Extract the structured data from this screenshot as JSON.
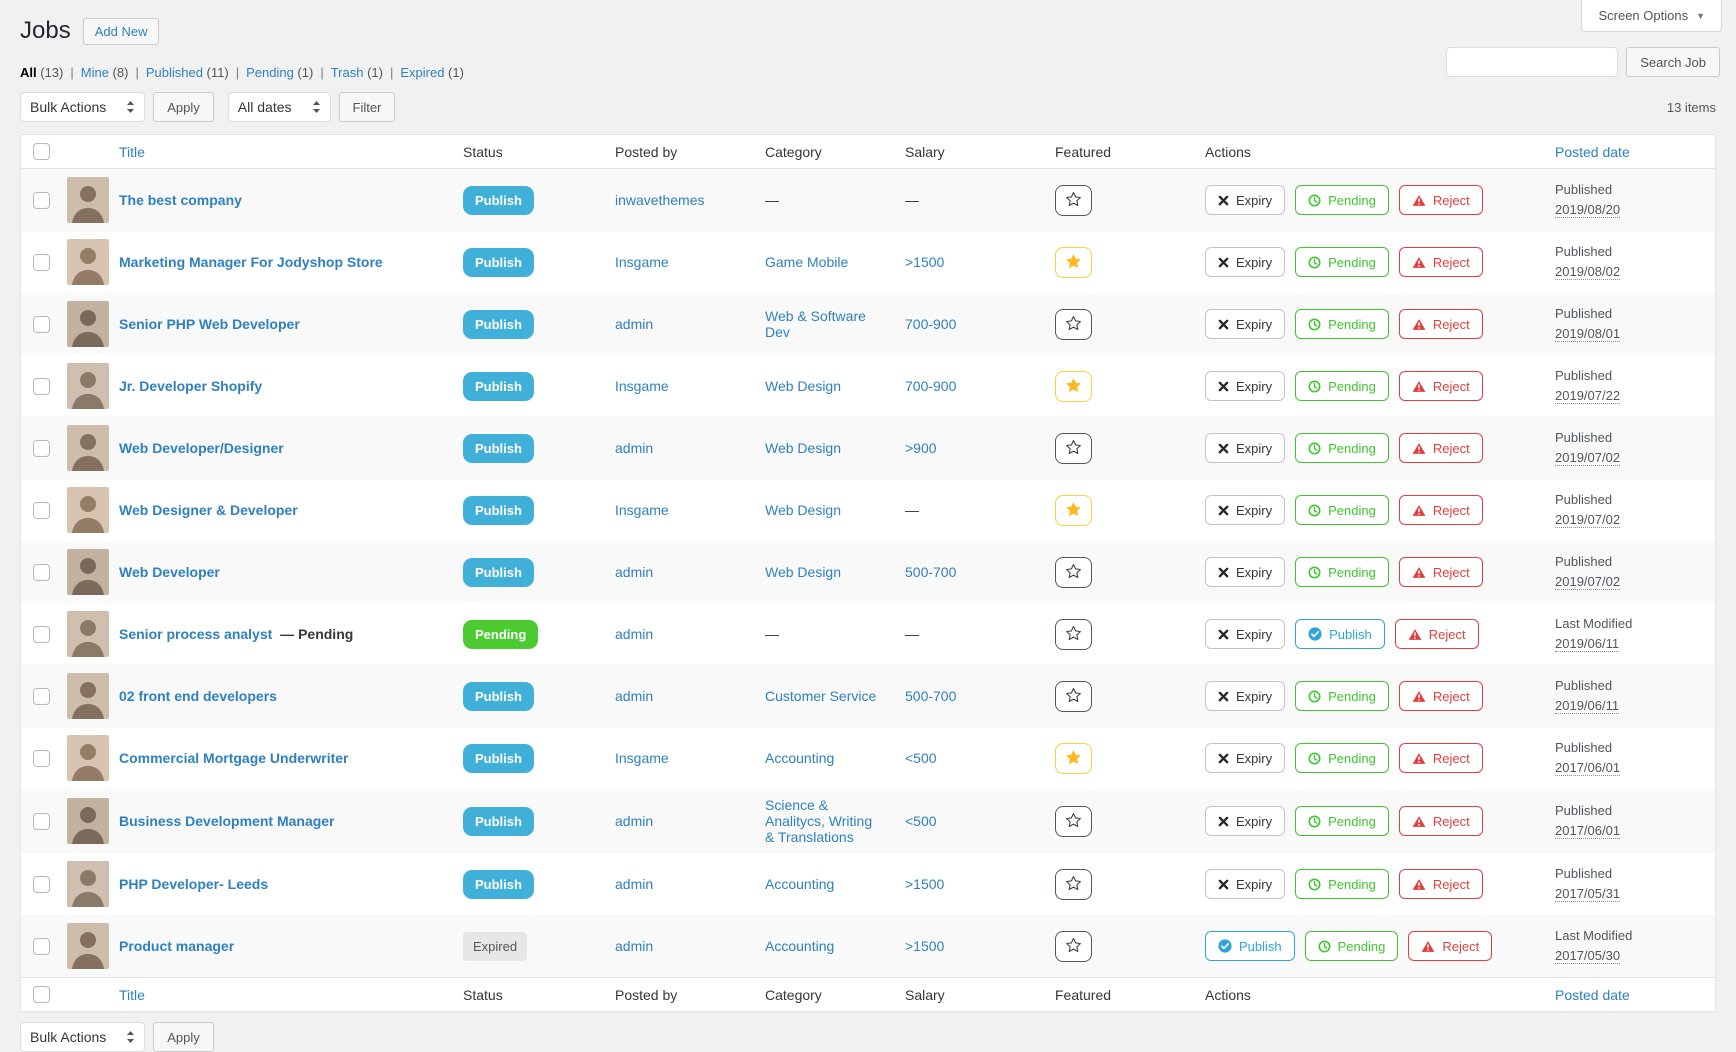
{
  "page": {
    "title": "Jobs",
    "add_new_label": "Add New",
    "screen_options_label": "Screen Options",
    "search_button_label": "Search Job",
    "items_count": "13 items"
  },
  "views": [
    {
      "label": "All",
      "count": "(13)",
      "current": true
    },
    {
      "label": "Mine",
      "count": "(8)",
      "current": false
    },
    {
      "label": "Published",
      "count": "(11)",
      "current": false
    },
    {
      "label": "Pending",
      "count": "(1)",
      "current": false
    },
    {
      "label": "Trash",
      "count": "(1)",
      "current": false
    },
    {
      "label": "Expired",
      "count": "(1)",
      "current": false
    }
  ],
  "toolbar": {
    "bulk_actions_value": "Bulk Actions",
    "apply_label": "Apply",
    "dates_filter_value": "All dates",
    "filter_label": "Filter"
  },
  "table": {
    "columns": [
      {
        "key": "title",
        "label": "Title",
        "sortable": true
      },
      {
        "key": "status",
        "label": "Status",
        "sortable": false
      },
      {
        "key": "posted_by",
        "label": "Posted by",
        "sortable": false
      },
      {
        "key": "category",
        "label": "Category",
        "sortable": false
      },
      {
        "key": "salary",
        "label": "Salary",
        "sortable": false
      },
      {
        "key": "featured",
        "label": "Featured",
        "sortable": false
      },
      {
        "key": "actions",
        "label": "Actions",
        "sortable": false
      },
      {
        "key": "posted_date",
        "label": "Posted date",
        "sortable": true
      }
    ],
    "action_labels": {
      "expiry": "Expiry",
      "pending": "Pending",
      "reject": "Reject",
      "publish": "Publish"
    },
    "rows": [
      {
        "title": "The best company",
        "title_suffix": "",
        "status": "Publish",
        "status_type": "publish",
        "posted_by": "inwavethemes",
        "category": "—",
        "salary": "—",
        "featured": false,
        "actions": [
          "expiry",
          "pending",
          "reject"
        ],
        "date_label": "Published",
        "date_value": "2019/08/20"
      },
      {
        "title": "Marketing Manager For Jodyshop Store",
        "title_suffix": "",
        "status": "Publish",
        "status_type": "publish",
        "posted_by": "Insgame",
        "category": "Game Mobile",
        "salary": ">1500",
        "featured": true,
        "actions": [
          "expiry",
          "pending",
          "reject"
        ],
        "date_label": "Published",
        "date_value": "2019/08/02"
      },
      {
        "title": "Senior PHP Web Developer",
        "title_suffix": "",
        "status": "Publish",
        "status_type": "publish",
        "posted_by": "admin",
        "category": "Web & Software Dev",
        "salary": "700-900",
        "featured": false,
        "actions": [
          "expiry",
          "pending",
          "reject"
        ],
        "date_label": "Published",
        "date_value": "2019/08/01"
      },
      {
        "title": "Jr. Developer Shopify",
        "title_suffix": "",
        "status": "Publish",
        "status_type": "publish",
        "posted_by": "Insgame",
        "category": "Web Design",
        "salary": "700-900",
        "featured": true,
        "actions": [
          "expiry",
          "pending",
          "reject"
        ],
        "date_label": "Published",
        "date_value": "2019/07/22"
      },
      {
        "title": "Web Developer/Designer",
        "title_suffix": "",
        "status": "Publish",
        "status_type": "publish",
        "posted_by": "admin",
        "category": "Web Design",
        "salary": ">900",
        "featured": false,
        "actions": [
          "expiry",
          "pending",
          "reject"
        ],
        "date_label": "Published",
        "date_value": "2019/07/02"
      },
      {
        "title": "Web Designer & Developer",
        "title_suffix": "",
        "status": "Publish",
        "status_type": "publish",
        "posted_by": "Insgame",
        "category": "Web Design",
        "salary": "—",
        "featured": true,
        "actions": [
          "expiry",
          "pending",
          "reject"
        ],
        "date_label": "Published",
        "date_value": "2019/07/02"
      },
      {
        "title": "Web Developer",
        "title_suffix": "",
        "status": "Publish",
        "status_type": "publish",
        "posted_by": "admin",
        "category": "Web Design",
        "salary": "500-700",
        "featured": false,
        "actions": [
          "expiry",
          "pending",
          "reject"
        ],
        "date_label": "Published",
        "date_value": "2019/07/02"
      },
      {
        "title": "Senior process analyst",
        "title_suffix": "— Pending",
        "status": "Pending",
        "status_type": "pending",
        "posted_by": "admin",
        "category": "—",
        "salary": "—",
        "featured": false,
        "actions": [
          "expiry",
          "publish",
          "reject"
        ],
        "date_label": "Last Modified",
        "date_value": "2019/06/11"
      },
      {
        "title": "02 front end developers",
        "title_suffix": "",
        "status": "Publish",
        "status_type": "publish",
        "posted_by": "admin",
        "category": "Customer Service",
        "salary": "500-700",
        "featured": false,
        "actions": [
          "expiry",
          "pending",
          "reject"
        ],
        "date_label": "Published",
        "date_value": "2019/06/11"
      },
      {
        "title": "Commercial Mortgage Underwriter",
        "title_suffix": "",
        "status": "Publish",
        "status_type": "publish",
        "posted_by": "Insgame",
        "category": "Accounting",
        "salary": "<500",
        "featured": true,
        "actions": [
          "expiry",
          "pending",
          "reject"
        ],
        "date_label": "Published",
        "date_value": "2017/06/01"
      },
      {
        "title": "Business Development Manager",
        "title_suffix": "",
        "status": "Publish",
        "status_type": "publish",
        "posted_by": "admin",
        "category": "Science & Analitycs, Writing & Translations",
        "salary": "<500",
        "featured": false,
        "actions": [
          "expiry",
          "pending",
          "reject"
        ],
        "date_label": "Published",
        "date_value": "2017/06/01"
      },
      {
        "title": "PHP Developer- Leeds",
        "title_suffix": "",
        "status": "Publish",
        "status_type": "publish",
        "posted_by": "admin",
        "category": "Accounting",
        "salary": ">1500",
        "featured": false,
        "actions": [
          "expiry",
          "pending",
          "reject"
        ],
        "date_label": "Published",
        "date_value": "2017/05/31"
      },
      {
        "title": "Product manager",
        "title_suffix": "",
        "status": "Expired",
        "status_type": "expired",
        "posted_by": "admin",
        "category": "Accounting",
        "salary": ">1500",
        "featured": false,
        "actions": [
          "publish",
          "pending",
          "reject"
        ],
        "date_label": "Last Modified",
        "date_value": "2017/05/30"
      }
    ]
  },
  "colors": {
    "link": "#2e80be",
    "status_publish": "#41b0d8",
    "status_pending": "#4ccb31",
    "expired_bg": "#e7e7e7",
    "action_pending": "#3fc62f",
    "action_reject": "#e23e3e",
    "action_publish": "#2ea5da",
    "featured_star": "#fcb81e"
  }
}
